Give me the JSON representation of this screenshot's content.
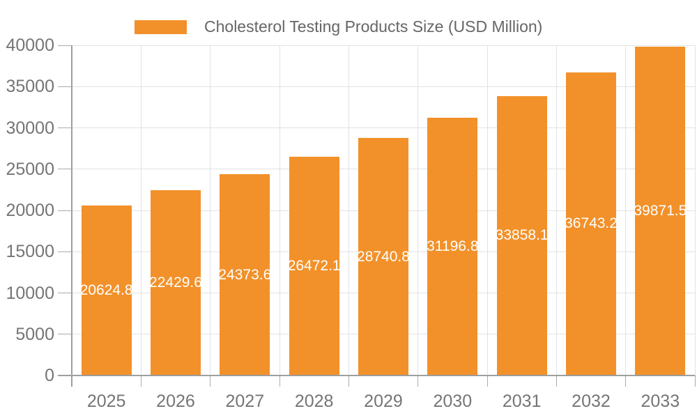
{
  "legend": {
    "label": "Cholesterol Testing Products Size (USD Million)"
  },
  "chart_data": {
    "type": "bar",
    "title": "Cholesterol Testing Products Size (USD Million)",
    "categories": [
      "2025",
      "2026",
      "2027",
      "2028",
      "2029",
      "2030",
      "2031",
      "2032",
      "2033"
    ],
    "series": [
      {
        "name": "Cholesterol Testing Products Size (USD Million)",
        "values": [
          20624.8,
          22429.6,
          24373.6,
          26472.1,
          28740.8,
          31196.8,
          33858.1,
          36743.2,
          39871.5
        ]
      }
    ],
    "value_labels": [
      "20624.8",
      "22429.6",
      "24373.6",
      "26472.1",
      "28740.8",
      "31196.8",
      "33858.1",
      "36743.2",
      "39871.5"
    ],
    "xlabel": "",
    "ylabel": "",
    "ylim": [
      0,
      40000
    ],
    "yticks": [
      0,
      5000,
      10000,
      15000,
      20000,
      25000,
      30000,
      35000,
      40000
    ],
    "ytick_labels": [
      "0",
      "5000",
      "10000",
      "15000",
      "20000",
      "25000",
      "30000",
      "35000",
      "40000"
    ],
    "grid": true,
    "legend_position": "top",
    "colors": {
      "bar": "#F2912A",
      "bar_label": "#FFFFFF",
      "axis_text": "#757575",
      "legend_text": "#666666",
      "gridline": "#E2E2E2",
      "tick": "#ABABAB",
      "axis_line": "#9E9E9E",
      "background": "#FFFFFF"
    }
  }
}
